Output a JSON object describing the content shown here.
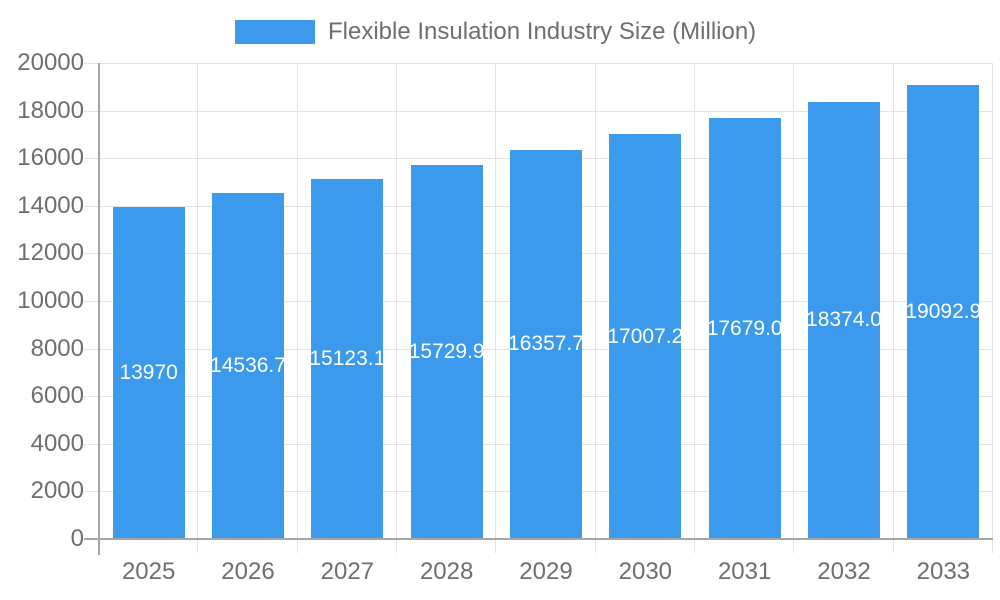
{
  "legend": {
    "label": "Flexible Insulation Industry Size (Million)"
  },
  "chart_data": {
    "type": "bar",
    "title": "Flexible Insulation Industry Size (Million)",
    "categories": [
      "2025",
      "2026",
      "2027",
      "2028",
      "2029",
      "2030",
      "2031",
      "2032",
      "2033"
    ],
    "values": [
      13970,
      14536.7,
      15123.1,
      15729.9,
      16357.7,
      17007.2,
      17679.0,
      18374.0,
      19092.9
    ],
    "bar_value_labels": [
      "13970",
      "14536.7",
      "15123.1",
      "15729.9",
      "16357.7",
      "17007.2",
      "17679.0",
      "18374.0",
      "19092.9"
    ],
    "series": [
      {
        "name": "Flexible Insulation Industry Size (Million)",
        "values": [
          13970,
          14536.7,
          15123.1,
          15729.9,
          16357.7,
          17007.2,
          17679.0,
          18374.0,
          19092.9
        ]
      }
    ],
    "xlabel": "",
    "ylabel": "",
    "ylim": [
      0,
      20000
    ],
    "yticks": [
      0,
      2000,
      4000,
      6000,
      8000,
      10000,
      12000,
      14000,
      16000,
      18000,
      20000
    ],
    "ytick_labels": [
      "0",
      "2000",
      "4000",
      "6000",
      "8000",
      "10000",
      "12000",
      "14000",
      "16000",
      "18000",
      "20000"
    ],
    "grid": true,
    "legend_position": "top",
    "colors": {
      "bar_fill": "#3B9AEC",
      "bar_label_text": "#ffffff",
      "axis_text": "#6e6e6e",
      "gridline": "#e3e3e3",
      "axis_line": "#a6a6a6"
    }
  }
}
